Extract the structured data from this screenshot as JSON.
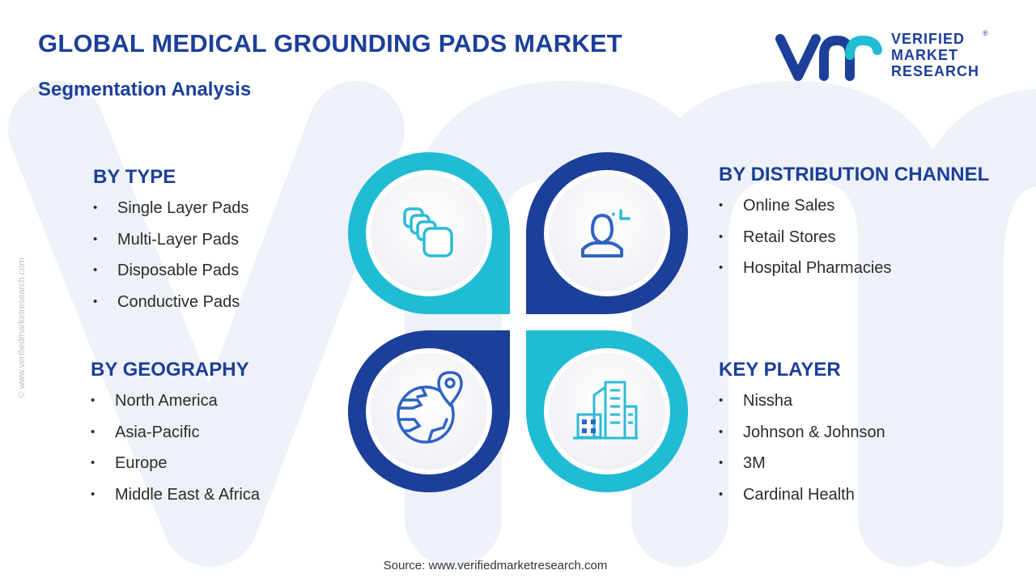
{
  "header": {
    "title": "GLOBAL MEDICAL GROUNDING PADS MARKET",
    "subtitle": "Segmentation Analysis"
  },
  "logo": {
    "mark": "vmr",
    "line1": "VERIFIED",
    "line2": "MARKET",
    "line3": "RESEARCH",
    "registered": "®"
  },
  "side_text": "© www.verifiedmarketresearch.com",
  "sections": {
    "type": {
      "heading": "BY TYPE",
      "items": [
        "Single Layer Pads",
        "Multi-Layer Pads",
        "Disposable Pads",
        "Conductive Pads"
      ],
      "icon": "layers-icon"
    },
    "distribution": {
      "heading": "BY DISTRIBUTION CHANNEL",
      "items": [
        "Online Sales",
        "Retail Stores",
        "Hospital Pharmacies"
      ],
      "icon": "user-icon"
    },
    "geography": {
      "heading": "BY GEOGRAPHY",
      "items": [
        "North America",
        "Asia-Pacific",
        "Europe",
        "Middle East & Africa"
      ],
      "icon": "globe-location-icon"
    },
    "key_player": {
      "heading": "KEY PLAYER",
      "items": [
        "Nissha",
        "Johnson & Johnson",
        "3M",
        "Cardinal Health"
      ],
      "icon": "buildings-icon"
    }
  },
  "source": "Source: www.verifiedmarketresearch.com",
  "colors": {
    "dark_blue": "#1c3f9a",
    "light_blue": "#20bcd4",
    "icon_blue": "#2f63c4",
    "icon_cyan": "#2bbbd7",
    "text": "#2b2b2b",
    "watermark": "#eef2f8"
  }
}
